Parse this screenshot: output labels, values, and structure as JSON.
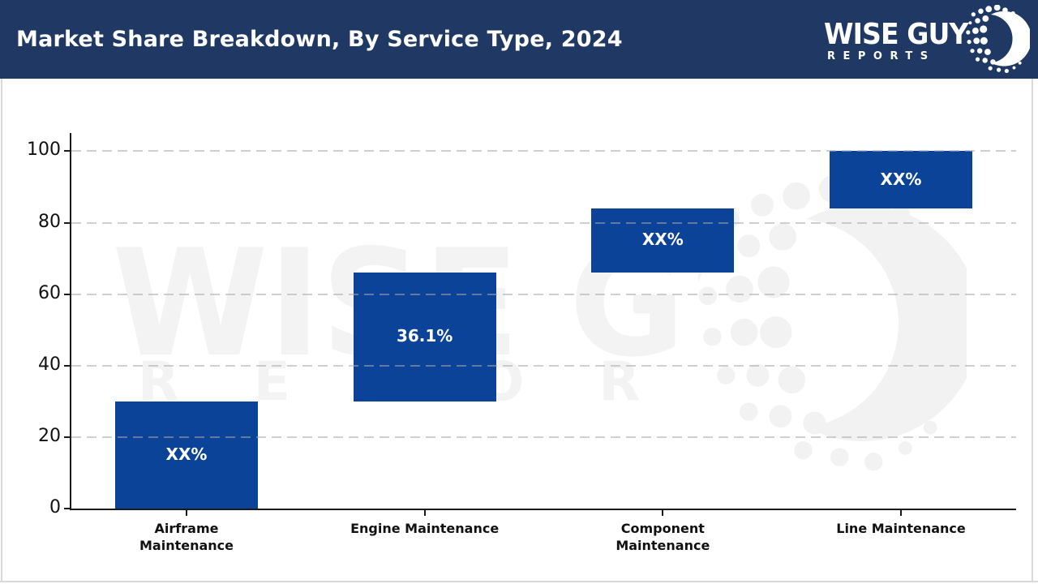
{
  "header": {
    "title": "Market Share Breakdown, By Service Type, 2024",
    "logo_line1": "WISE GUY",
    "logo_line2": "REPORTS"
  },
  "watermark": {
    "line1": "WISE GUY",
    "line2": "REPORTS"
  },
  "colors": {
    "header_bg": "#1f3864",
    "bar": "#0b4398",
    "bar_label": "#ffffff",
    "axis": "#1a1a1a",
    "tick_label": "#111111",
    "gridline": "#d9d9d9",
    "watermark": "#f3f3f3"
  },
  "chart_data": {
    "type": "bar",
    "subtype": "waterfall-floating",
    "title": "Market Share Breakdown, By Service Type, 2024",
    "categories": [
      "Airframe Maintenance",
      "Engine Maintenance",
      "Component Maintenance",
      "Line Maintenance"
    ],
    "bars": [
      {
        "category": "Airframe Maintenance",
        "lines": [
          "Airframe",
          "Maintenance"
        ],
        "start": 0,
        "end": 30,
        "value": 30,
        "label": "XX%"
      },
      {
        "category": "Engine Maintenance",
        "lines": [
          "Engine Maintenance"
        ],
        "start": 30,
        "end": 66.1,
        "value": 36.1,
        "label": "36.1%"
      },
      {
        "category": "Component Maintenance",
        "lines": [
          "Component",
          "Maintenance"
        ],
        "start": 66.1,
        "end": 84,
        "value": 17.9,
        "label": "XX%"
      },
      {
        "category": "Line Maintenance",
        "lines": [
          "Line Maintenance"
        ],
        "start": 84,
        "end": 100,
        "value": 16,
        "label": "XX%"
      }
    ],
    "xlabel": "",
    "ylabel": "",
    "yticks": [
      0,
      20,
      40,
      60,
      80,
      100
    ],
    "ylim": [
      0,
      105
    ],
    "grid": "horizontal-dashed-over-bars",
    "legend": "none"
  }
}
